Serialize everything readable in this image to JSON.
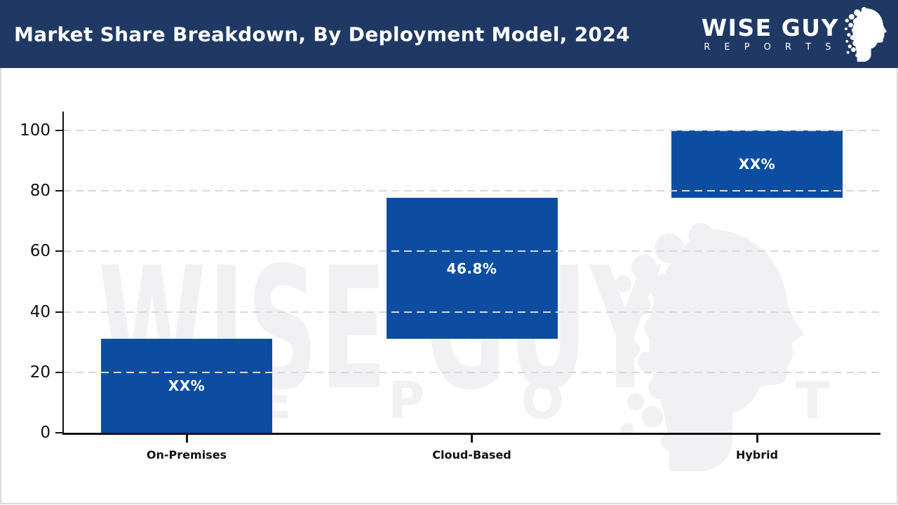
{
  "header": {
    "title": "Market Share Breakdown, By Deployment Model, 2024",
    "bg_color": "#1f3864",
    "logo": {
      "name": "WISE GUY",
      "tagline": "R E P O R T S"
    }
  },
  "watermark": {
    "line1": "WISE GUY",
    "line2": "R E P O R T S"
  },
  "chart_data": {
    "type": "bar",
    "variant": "floating-segment-breakdown",
    "title": "Market Share Breakdown, By Deployment Model, 2024",
    "categories": [
      "On-Premises",
      "Cloud-Based",
      "Hybrid"
    ],
    "series": [
      {
        "name": "Market share by deployment model (%)",
        "bars": [
          {
            "category": "On-Premises",
            "start": 0,
            "end": 31.0,
            "label": "XX%"
          },
          {
            "category": "Cloud-Based",
            "start": 31.0,
            "end": 77.8,
            "label": "46.8%"
          },
          {
            "category": "Hybrid",
            "start": 77.8,
            "end": 100,
            "label": "XX%"
          }
        ]
      }
    ],
    "xlabel": "",
    "ylabel": "",
    "yticks": [
      0,
      20,
      40,
      60,
      80,
      100
    ],
    "ylim": [
      0,
      106
    ],
    "grid": "horizontal-dashed-on-top",
    "legend": "none",
    "colors": {
      "bar": "#0c4da2",
      "bar_label": "#ffffff",
      "grid": "#d9d9d9",
      "axis": "#111111",
      "tick_label": "#111111",
      "background": "#ffffff",
      "header_bg": "#1f3864",
      "watermark": "#f1f1f3",
      "frame_border": "#d9d9d9"
    }
  }
}
